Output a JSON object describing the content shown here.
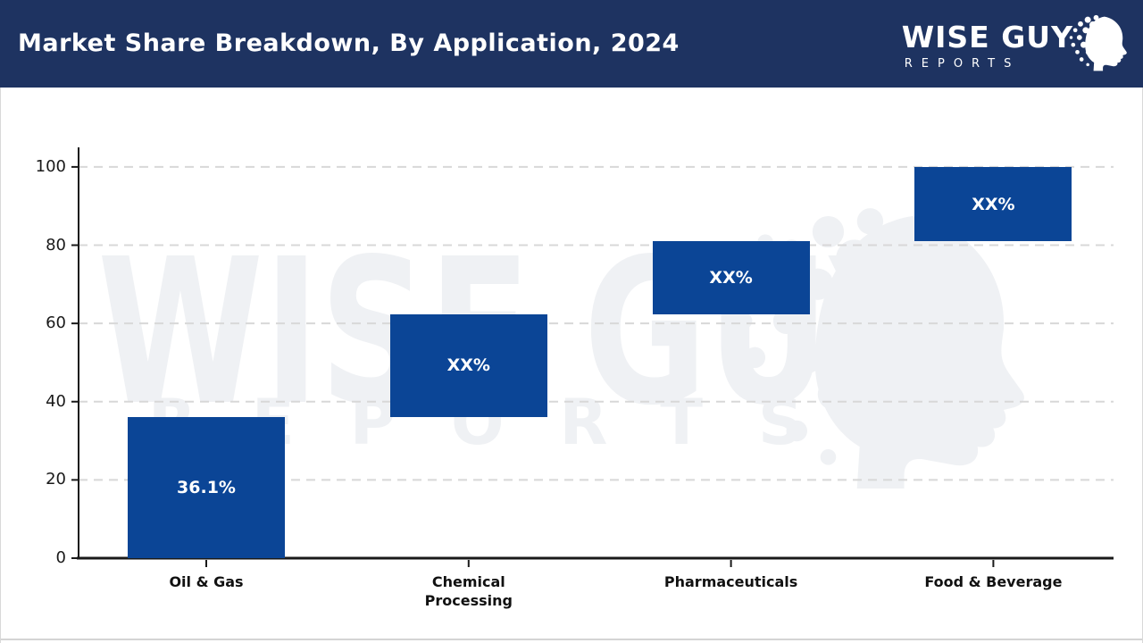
{
  "header": {
    "title": "Market Share Breakdown, By Application, 2024",
    "logo": {
      "line1": "WISE GUY",
      "line2": "REPORTS"
    }
  },
  "watermark": {
    "line1": "WISE GUY",
    "line2": "REPORTS"
  },
  "chart_data": {
    "type": "bar",
    "subtype": "stacked-percentage-breakdown-waterfall",
    "title": "Market Share Breakdown, By Application, 2024",
    "categories": [
      "Oil & Gas",
      "Chemical\nProcessing",
      "Pharmaceuticals",
      "Food & Beverage"
    ],
    "bars": [
      {
        "category": "Oil & Gas",
        "start": 0,
        "end": 36.1,
        "label": "36.1%"
      },
      {
        "category": "Chemical Processing",
        "start": 36.1,
        "end": 62.3,
        "label": "XX%"
      },
      {
        "category": "Pharmaceuticals",
        "start": 62.3,
        "end": 81.0,
        "label": "XX%"
      },
      {
        "category": "Food & Beverage",
        "start": 81.0,
        "end": 100.0,
        "label": "XX%"
      }
    ],
    "yticks": [
      0,
      20,
      40,
      60,
      80,
      100
    ],
    "ylim": [
      0,
      105
    ],
    "xlabel": "",
    "ylabel": "",
    "grid": "horizontal-dashed",
    "legend": "none",
    "colors": {
      "bar": "#0b4596",
      "bar_label": "#ffffff",
      "axis": "#1a1a1a",
      "gridline": "#d8d8d8",
      "header_bg": "#1e3361",
      "watermark": "#eff1f4"
    }
  }
}
